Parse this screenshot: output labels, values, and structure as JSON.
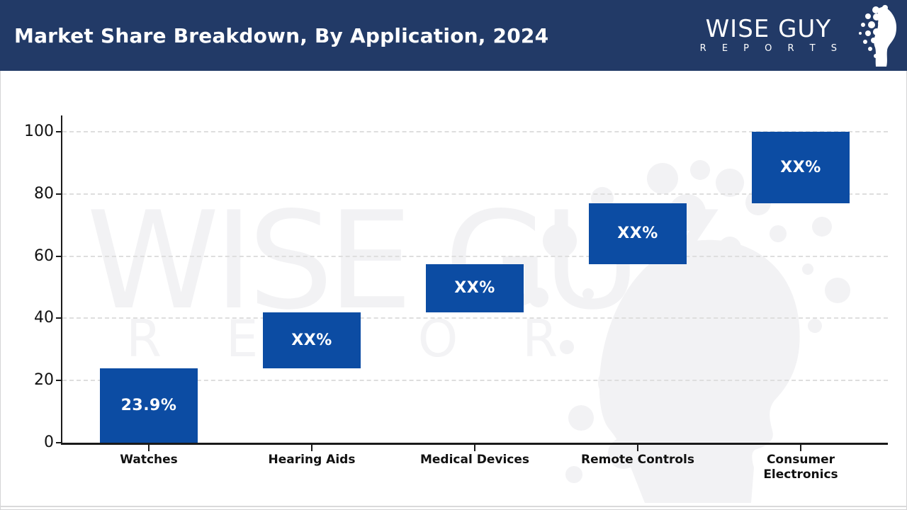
{
  "header": {
    "title": "Market Share Breakdown, By Application, 2024",
    "background_color": "#223A67",
    "logo": {
      "line1": "WISE GUY",
      "line2": "R E P O R T S"
    }
  },
  "watermark": {
    "line1": "WISE GUY",
    "line2": "R E P O R T S"
  },
  "chart_data": {
    "type": "bar",
    "subtype": "waterfall",
    "title": "Market Share Breakdown, By Application, 2024",
    "xlabel": "",
    "ylabel": "",
    "ylim": [
      0,
      100
    ],
    "yticks": [
      0,
      20,
      40,
      60,
      80,
      100
    ],
    "grid": "horizontal-dashed",
    "legend": "none",
    "bar_color": "#0C4CA3",
    "bar_label_color": "#ffffff",
    "categories": [
      "Watches",
      "Hearing Aids",
      "Medical Devices",
      "Remote Controls",
      "Consumer Electronics"
    ],
    "bars": [
      {
        "category": "Watches",
        "category_display": "Watches",
        "start": 0,
        "end": 23.9,
        "value": 23.9,
        "label": "23.9%"
      },
      {
        "category": "Hearing Aids",
        "category_display": "Hearing Aids",
        "start": 23.9,
        "end": 42,
        "value": 18.1,
        "label": "XX%"
      },
      {
        "category": "Medical Devices",
        "category_display": "Medical Devices",
        "start": 42,
        "end": 57.5,
        "value": 15.5,
        "label": "XX%"
      },
      {
        "category": "Remote Controls",
        "category_display": "Remote Controls",
        "start": 57.5,
        "end": 77,
        "value": 19.5,
        "label": "XX%"
      },
      {
        "category": "Consumer Electronics",
        "category_display": "Consumer\nElectronics",
        "start": 77,
        "end": 100,
        "value": 23,
        "label": "XX%"
      }
    ]
  }
}
